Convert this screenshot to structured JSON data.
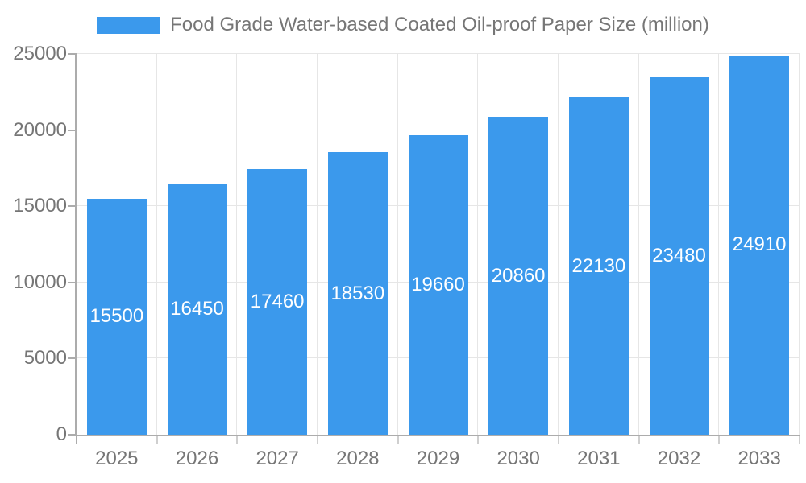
{
  "chart_data": {
    "type": "bar",
    "title": "",
    "xlabel": "",
    "ylabel": "",
    "legend": "Food Grade Water-based Coated Oil-proof Paper Size (million)",
    "legend_position": "top-center",
    "categories": [
      "2025",
      "2026",
      "2027",
      "2028",
      "2029",
      "2030",
      "2031",
      "2032",
      "2033"
    ],
    "values": [
      15500,
      16450,
      17460,
      18530,
      19660,
      20860,
      22130,
      23480,
      24910
    ],
    "bar_value_labels": [
      "15500",
      "16450",
      "17460",
      "18530",
      "19660",
      "20860",
      "22130",
      "23480",
      "24910"
    ],
    "ylim": [
      0,
      25000
    ],
    "yticks": [
      0,
      5000,
      10000,
      15000,
      20000,
      25000
    ],
    "ytick_labels": [
      "0",
      "5000",
      "10000",
      "15000",
      "20000",
      "25000"
    ],
    "grid": true,
    "colors": {
      "bar": "#3B99EC",
      "bar_label": "#FFFFFF",
      "axis_line": "#ACACAC",
      "grid_line": "#E6E6E6",
      "x_tick_mark": "#CFCFCF",
      "tick_label": "#767676",
      "legend_text": "#767676",
      "background": "#FFFFFF"
    }
  }
}
